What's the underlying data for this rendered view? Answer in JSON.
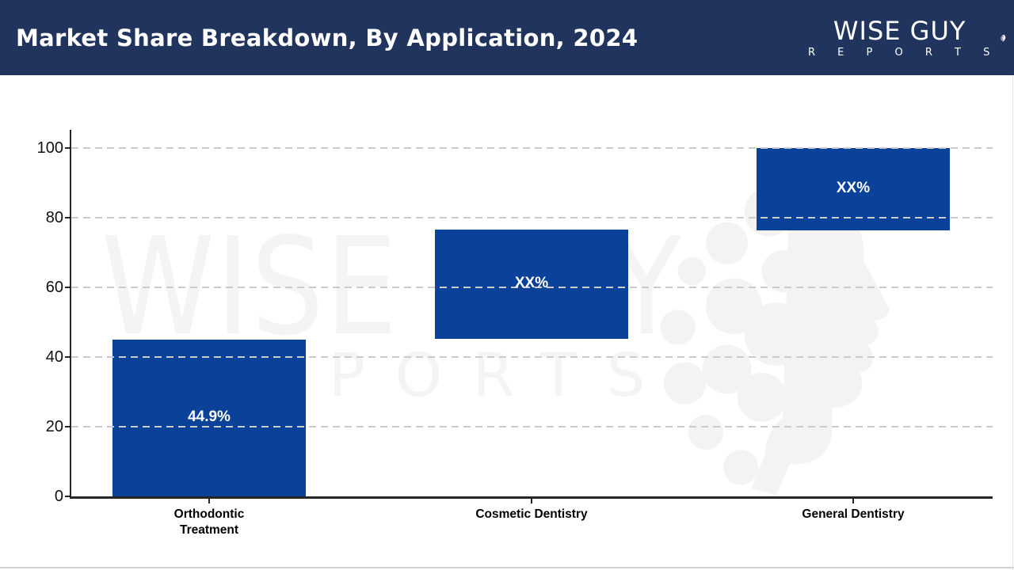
{
  "header": {
    "title": "Market Share Breakdown, By Application, 2024",
    "bg_color": "#20345e",
    "logo": {
      "line1": "WISE GUY",
      "line2": "R E P O R T S"
    }
  },
  "watermark": {
    "line1": "WISE GUY",
    "line2": "REPORTS"
  },
  "chart_data": {
    "type": "bar",
    "subtype": "waterfall-segments",
    "title": "Market Share Breakdown, By Application, 2024",
    "categories": [
      "Orthodontic Treatment",
      "Cosmetic Dentistry",
      "General Dentistry"
    ],
    "bars": [
      {
        "category": "Orthodontic Treatment",
        "start": 0,
        "end": 44.9,
        "label": "44.9%",
        "label_lines": [
          "Orthodontic",
          "Treatment"
        ]
      },
      {
        "category": "Cosmetic Dentistry",
        "start": 45.2,
        "end": 76.5,
        "label": "XX%",
        "label_lines": [
          "Cosmetic Dentistry"
        ]
      },
      {
        "category": "General Dentistry",
        "start": 76.4,
        "end": 100,
        "label": "XX%",
        "label_lines": [
          "General Dentistry"
        ]
      }
    ],
    "bar_color": "#0a429a",
    "value_label_color": "#ffffff",
    "xlabel": "",
    "ylabel": "",
    "ylim": [
      0,
      100
    ],
    "yticks": [
      0,
      20,
      40,
      60,
      80,
      100
    ],
    "grid": "horizontal-dashed-over-bars",
    "gridline_color": "#cbcbcb",
    "axis_color": "#262626",
    "legend": "none"
  }
}
